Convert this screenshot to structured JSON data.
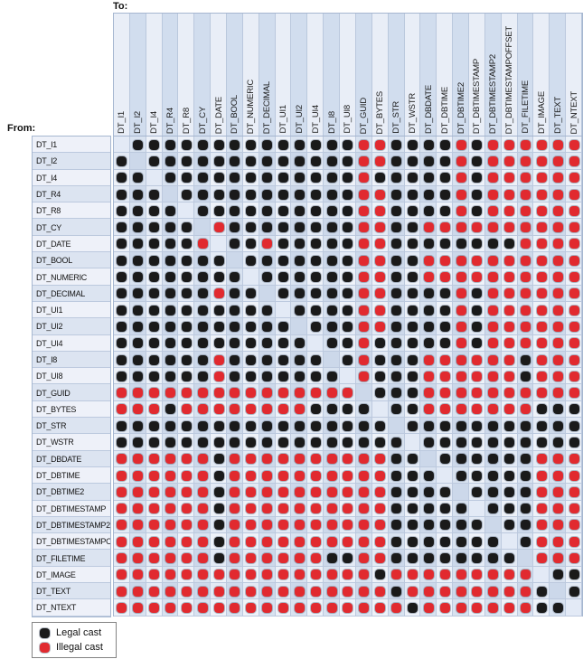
{
  "chart_data": {
    "type": "heatmap",
    "title": "",
    "x_label": "To:",
    "y_label": "From:",
    "x_categories": [
      "DT_I1",
      "DT_I2",
      "DT_I4",
      "DT_R4",
      "DT_R8",
      "DT_CY",
      "DT_DATE",
      "DT_BOOL",
      "DT_NUMERIC",
      "DT_DECIMAL",
      "DT_UI1",
      "DT_UI2",
      "DT_UI4",
      "DT_I8",
      "DT_UI8",
      "DT_GUID",
      "DT_BYTES",
      "DT_STR",
      "DT_WSTR",
      "DT_DBDATE",
      "DT_DBTIME",
      "DT_DBTIME2",
      "DT_DBTIMESTAMP",
      "DT_DBTIMESTAMP2",
      "DT_DBTIMESTAMPOFFSET",
      "DT_FILETIME",
      "DT_IMAGE",
      "DT_TEXT",
      "DT_NTEXT"
    ],
    "y_categories": [
      "DT_I1",
      "DT_I2",
      "DT_I4",
      "DT_R4",
      "DT_R8",
      "DT_CY",
      "DT_DATE",
      "DT_BOOL",
      "DT_NUMERIC",
      "DT_DECIMAL",
      "DT_UI1",
      "DT_UI2",
      "DT_UI4",
      "DT_I8",
      "DT_UI8",
      "DT_GUID",
      "DT_BYTES",
      "DT_STR",
      "DT_WSTR",
      "DT_DBDATE",
      "DT_DBTIME",
      "DT_DBTIME2",
      "DT_DBTIMESTAMP",
      "DT_DBTIMESTAMP2",
      "DT_DBTIMESTAMPOFFSET",
      "DT_FILETIME",
      "DT_IMAGE",
      "DT_TEXT",
      "DT_NTEXT"
    ],
    "cell_encoding": {
      "L": "Legal cast",
      "I": "Illegal cast",
      ".": "same type - empty cell"
    },
    "rows": [
      ".LLLLLLLLLLLLLLIILLLLILIIIIII",
      "L.LLLLLLLLLLLLLIILLLLILIIIIII",
      "LL.LLLLLLLLLLLLILLLLLILIIIIII",
      "LLL.LLLLLLLLLLLIILLLLILIIIIII",
      "LLLL.LLLLLLLLLLIILLLLILIIIIII",
      "LLLLL.ILLLLLLLLIILLIIIIIIIIII",
      "LLLLLI.LLILLLLLIILLLLLLLLIIII",
      "LLLLLLL.LLLLLLLIILLIIIIIIIIII",
      "LLLLLLLL.LLLLLLIILLIIIIIIIIII",
      "LLLLLLILL.LLLLLIILLLLILIIIIII",
      "LLLLLLLLLL.LLLLIILLLLILIIIIII",
      "LLLLLLLLLLL.LLLIILLLLILIIIIII",
      "LLLLLLLLLLLL.LLILLLLLILIIIIII",
      "LLLLLLILLLLLL.LILLLIIIIIILIII",
      "LLLLLLILLLLLLL.ILLLIIIIIILIII",
      "IIIIIIIIIIIIIII.LLLIIIIIIIIII",
      "IIILIIIIIIIILLLL.LLIIIIIIILLL",
      "LLLLLLLLLLLLLLLLL.LLLLLLLLLLL",
      "LLLLLLLLLLLLLLLLLL.LLLLLLLLLL",
      "IIIIIILIIIIIIIIIILL.LLLLLLIII",
      "IIIIIILIIIIIIIIIILLL.LLLLLIII",
      "IIIIIILIIIIIIIIIILLLL.LLLLIII",
      "IIIIIILIIIIIIIIIILLLLL.LLLIII",
      "IIIIIILIIIIIIIIIILLLLLL.LLIII",
      "IIIIIILIIIIIIIIIILLLLLLL.LIII",
      "IIIIIILIIIIIILLIILLLLLLLL.III",
      "IIIIIIIIIIIIIIIILIIIIIIIII.LL",
      "IIIIIIIIIIIIIIIIILIIIIIIIIL.L",
      "IIIIIIIIIIIIIIIIIILIIIIIIILL."
    ],
    "legend_position": "bottom-left",
    "grid": true
  },
  "legend": {
    "items": [
      {
        "label": "Legal cast",
        "kind": "legal"
      },
      {
        "label": "Illegal cast",
        "kind": "illegal"
      }
    ]
  },
  "colors": {
    "legal": "#1a1a1a",
    "illegal": "#e12a2f",
    "band_light": "#e9eef7",
    "band_dark": "#d1ddee",
    "grid_line": "#bcc9de"
  }
}
